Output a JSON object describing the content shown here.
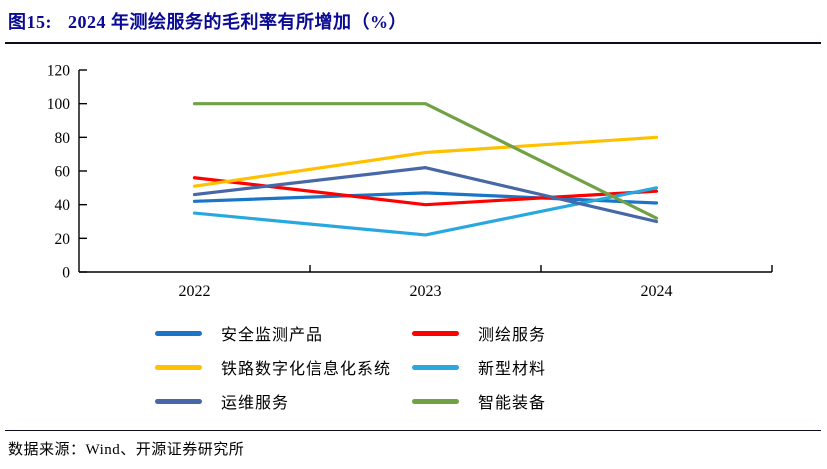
{
  "title": {
    "prefix": "图15:",
    "text": "2024 年测绘服务的毛利率有所增加（%）"
  },
  "source": {
    "label": "数据来源：",
    "text": "Wind、开源证券研究所"
  },
  "chart_data": {
    "type": "line",
    "title": "2024 年测绘服务的毛利率有所增加（%）",
    "x": [
      "2022",
      "2023",
      "2024"
    ],
    "series": [
      {
        "name": "安全监测产品",
        "color": "#1b75c6",
        "values": [
          42,
          47,
          41
        ]
      },
      {
        "name": "测绘服务",
        "color": "#ff0000",
        "values": [
          56,
          40,
          48
        ]
      },
      {
        "name": "铁路数字化信息化系统",
        "color": "#ffc000",
        "values": [
          51,
          71,
          80
        ]
      },
      {
        "name": "新型材料",
        "color": "#29a8e0",
        "values": [
          35,
          22,
          50
        ]
      },
      {
        "name": "运维服务",
        "color": "#4767a6",
        "values": [
          46,
          62,
          30
        ]
      },
      {
        "name": "智能装备",
        "color": "#70a144",
        "values": [
          100,
          100,
          32
        ]
      }
    ],
    "xlabel": "",
    "ylabel": "",
    "ylim": [
      0,
      120
    ],
    "ytick_step": 20,
    "yticks": [
      0,
      20,
      40,
      60,
      80,
      100,
      120
    ],
    "grid": false,
    "legend_position": "bottom",
    "legend_columns": 2
  }
}
